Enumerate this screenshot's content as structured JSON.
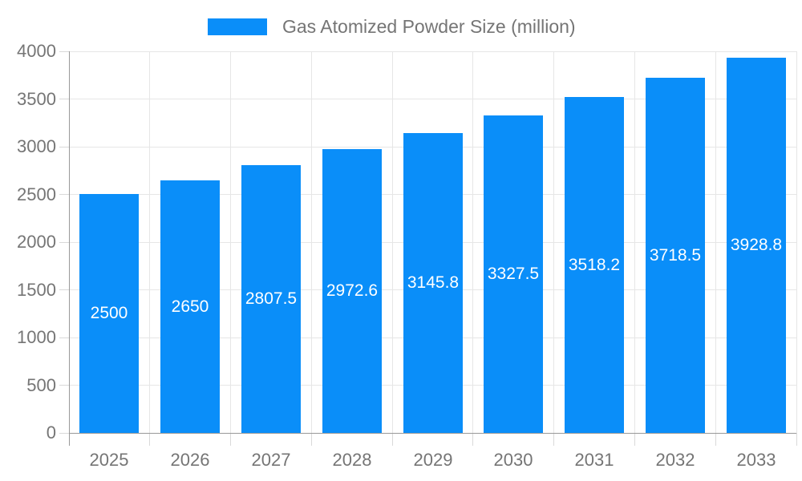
{
  "chart_data": {
    "type": "bar",
    "title": "Gas Atomized Powder Size (million)",
    "categories": [
      "2025",
      "2026",
      "2027",
      "2028",
      "2029",
      "2030",
      "2031",
      "2032",
      "2033"
    ],
    "series": [
      {
        "name": "Gas Atomized Powder Size (million)",
        "values": [
          2500,
          2650,
          2807.5,
          2972.6,
          3145.8,
          3327.5,
          3518.2,
          3718.5,
          3928.8
        ]
      }
    ],
    "value_labels": [
      "2500",
      "2650",
      "2807.5",
      "2972.6",
      "3145.8",
      "3327.5",
      "3518.2",
      "3718.5",
      "3928.8"
    ],
    "xlabel": "",
    "ylabel": "",
    "ylim": [
      0,
      4000
    ],
    "yticks": [
      0,
      500,
      1000,
      1500,
      2000,
      2500,
      3000,
      3500,
      4000
    ],
    "grid": true,
    "legend_position": "top",
    "value_label_position": "inside-center",
    "colors": {
      "bar": "#0a8ef9",
      "axis_text": "#757575",
      "value_text": "#ffffff",
      "gridline": "#e6e6e6",
      "tick": "#d9d9d9",
      "axis_line": "#999999",
      "background": "#ffffff"
    }
  }
}
